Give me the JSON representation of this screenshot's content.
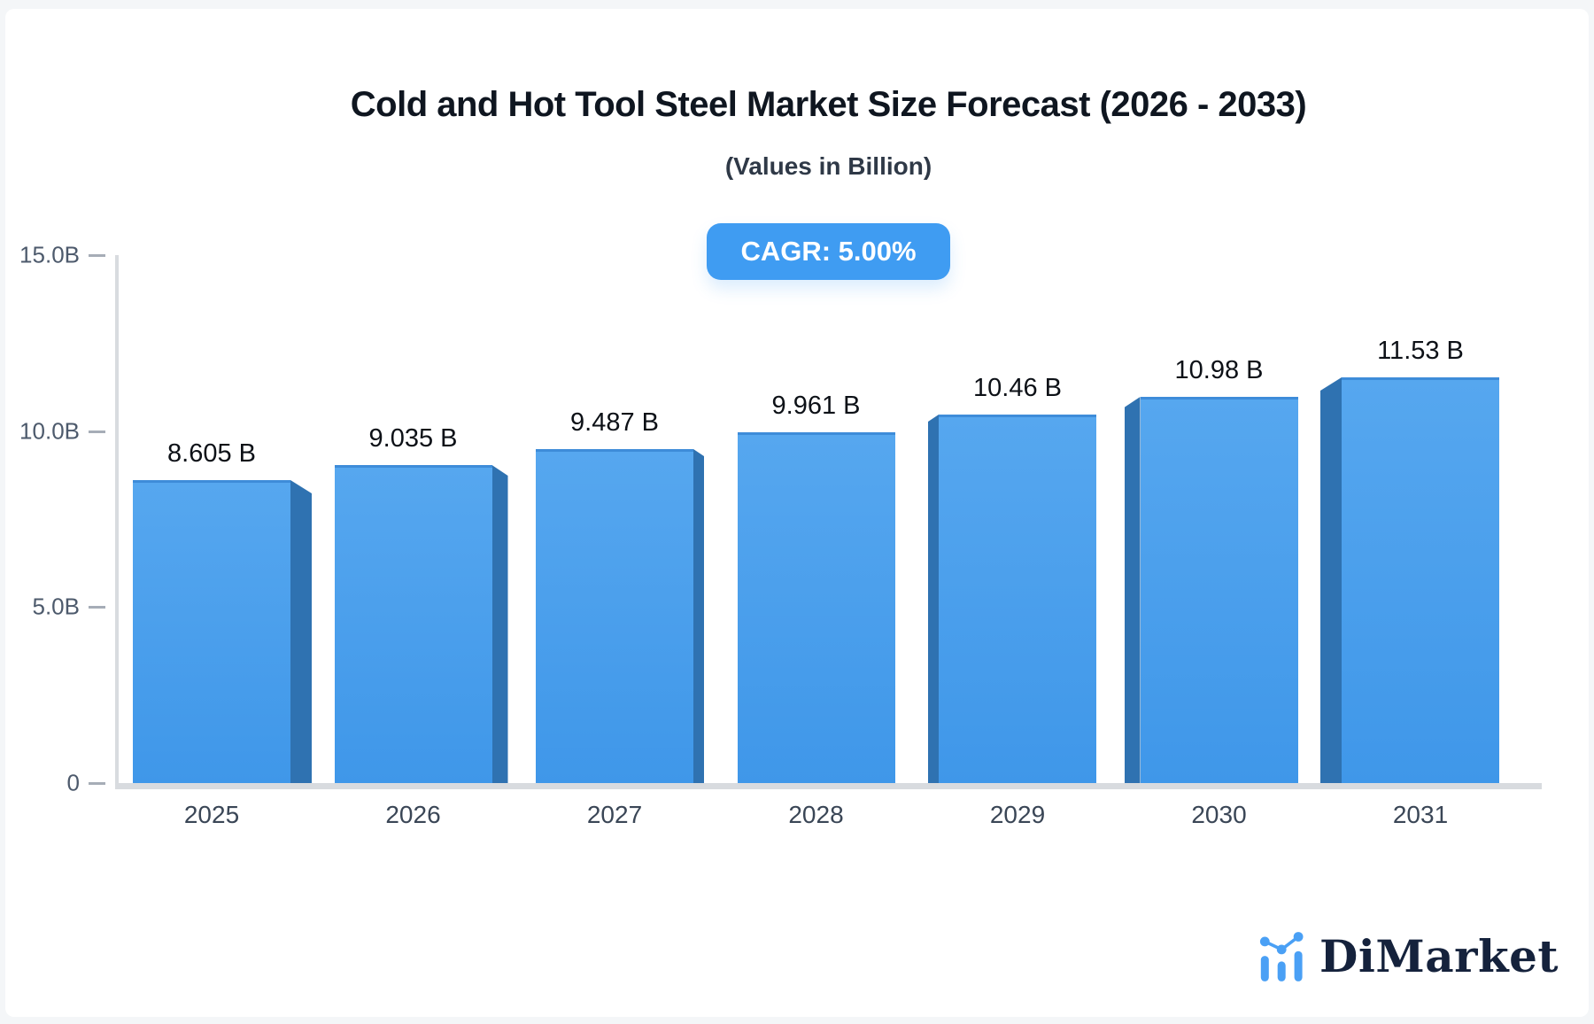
{
  "header": {
    "title": "Cold and Hot Tool Steel Market Size Forecast (2026 - 2033)",
    "subtitle": "(Values in Billion)",
    "cagr_badge": "CAGR: 5.00%"
  },
  "chart_data": {
    "type": "bar",
    "title": "Cold and Hot Tool Steel Market Size Forecast (2026 - 2033)",
    "subtitle": "(Values in Billion)",
    "categories": [
      "2025",
      "2026",
      "2027",
      "2028",
      "2029",
      "2030",
      "2031"
    ],
    "values": [
      8.605,
      9.035,
      9.487,
      9.961,
      10.46,
      10.98,
      11.53
    ],
    "value_labels": [
      "8.605 B",
      "9.035 B",
      "9.487 B",
      "9.961 B",
      "10.46 B",
      "10.98 B",
      "11.53 B"
    ],
    "cagr": "5.00%",
    "xlabel": "",
    "ylabel": "",
    "ylim": [
      0,
      15
    ],
    "yticks": [
      {
        "label": "15.0B",
        "value": 15
      },
      {
        "label": "10.0B",
        "value": 10
      },
      {
        "label": "5.0B",
        "value": 5
      },
      {
        "label": "0",
        "value": 0
      }
    ],
    "grid": false,
    "legend": false,
    "bar_style": "3d-extruded",
    "bar_color_top": "#56A7EF",
    "bar_color_bottom": "#3F97E9",
    "bar_side_color": "#2F72B1"
  },
  "logo": {
    "text": "DiMarket",
    "icon": "mini-bar-chart-icon",
    "icon_color": "#4AA0F5",
    "text_color": "#15223C"
  },
  "colors": {
    "badge_bg": "#3F9CF2",
    "badge_text": "#FFFFFF",
    "axis_line": "#D8DBDF",
    "page_bg": "#F4F6F8",
    "card_bg": "#FFFFFF"
  }
}
